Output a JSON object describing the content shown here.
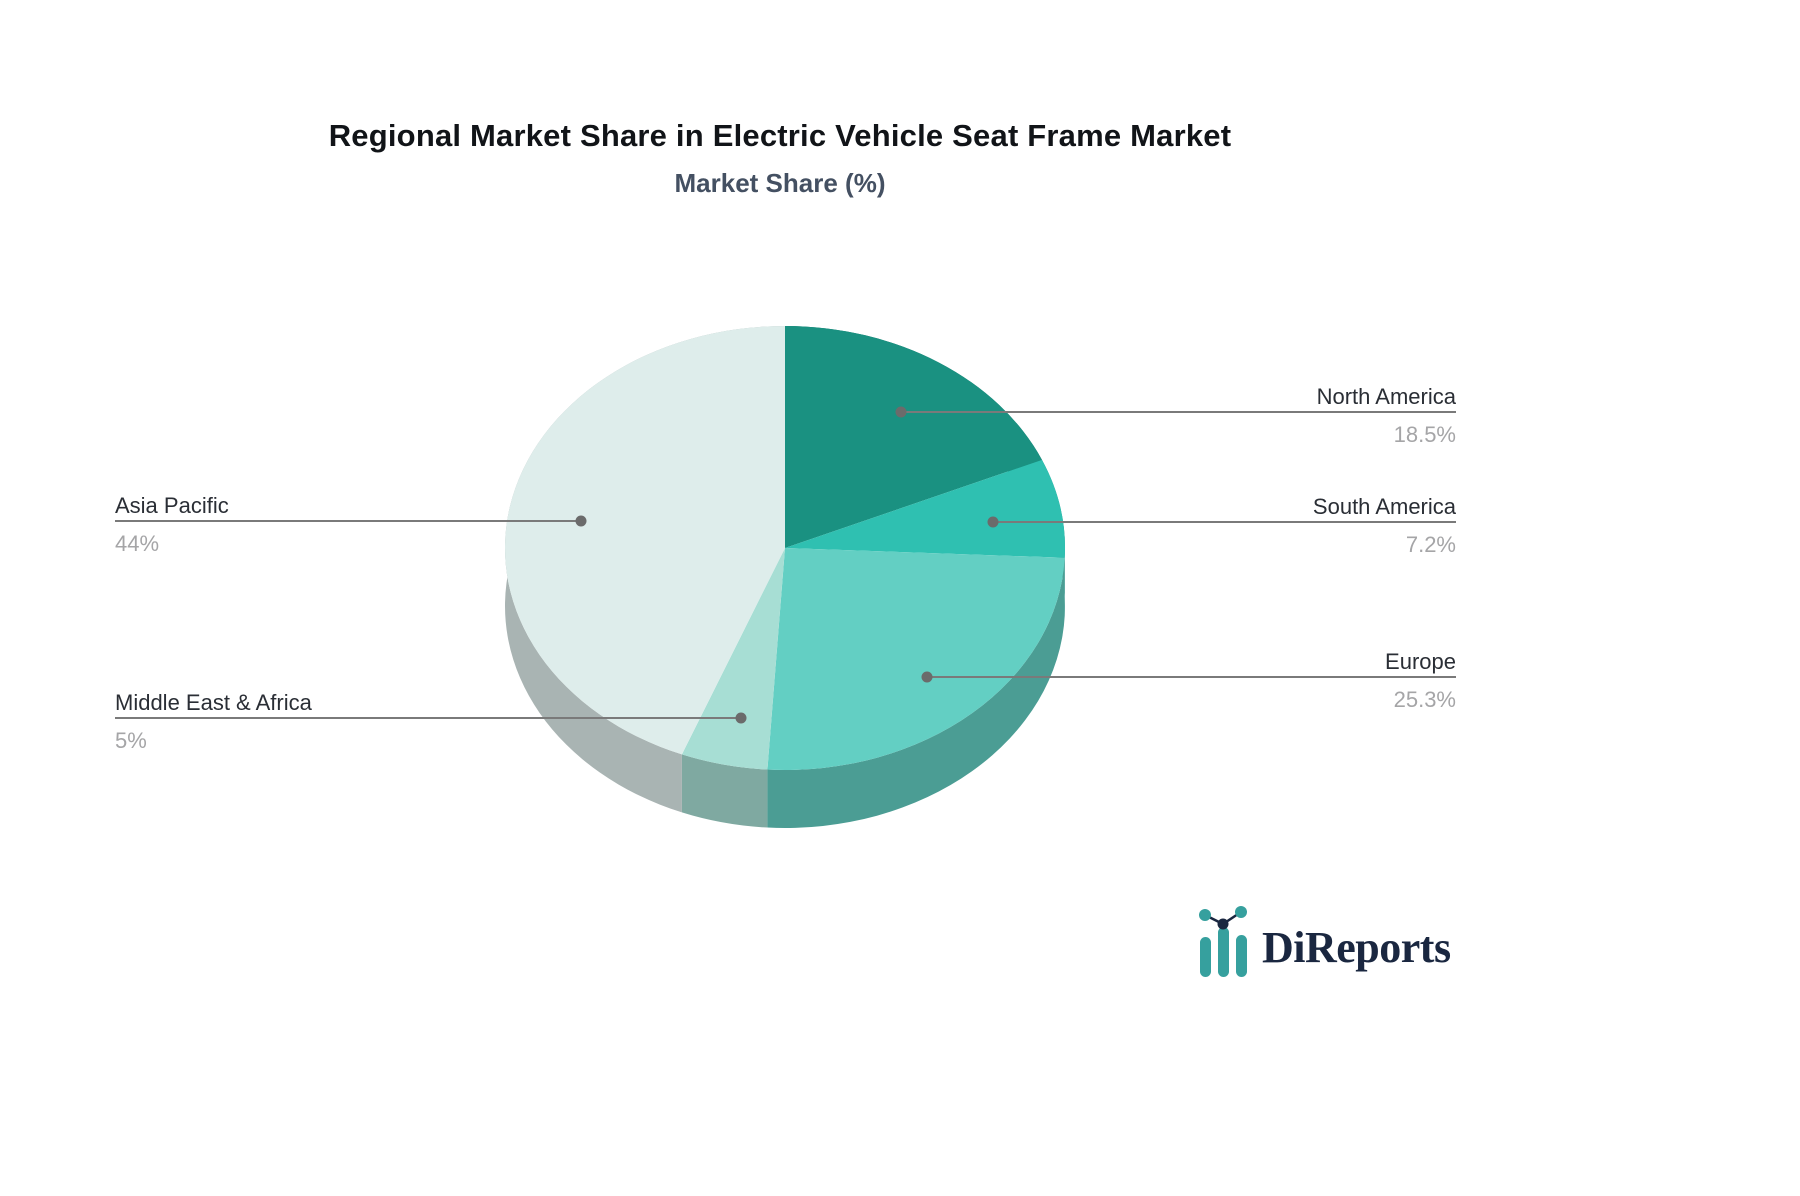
{
  "title": "Regional Market Share in Electric Vehicle Seat Frame Market",
  "subtitle": "Market Share (%)",
  "chart_data": {
    "type": "pie",
    "title": "Regional Market Share in Electric Vehicle Seat Frame Market",
    "subtitle": "Market Share (%)",
    "unit": "%",
    "style": "3d-depth-pie",
    "start_angle": "12-o-clock",
    "direction": "clockwise",
    "legend": "none, leader-line callout labels",
    "labels": [
      "North America",
      "South America",
      "Europe",
      "Middle East & Africa",
      "Asia Pacific"
    ],
    "values": [
      18.5,
      7.2,
      25.3,
      5,
      44
    ],
    "display_values": [
      "18.5%",
      "7.2%",
      "25.3%",
      "5%",
      "44%"
    ],
    "colors": [
      "#1a9181",
      "#2fc0b1",
      "#63cfc3",
      "#a7ded4",
      "#deedeb"
    ],
    "leader_line_color": "#7a7a7a",
    "anchor_dot_color": "#6b6b6b",
    "label_color": "#2a2e35",
    "value_color": "#a5a5a7"
  },
  "logo": {
    "text": "DiReports",
    "icon": "mini-bar-chart-icon",
    "teal": "#36a09e",
    "navy": "#1a2740"
  }
}
